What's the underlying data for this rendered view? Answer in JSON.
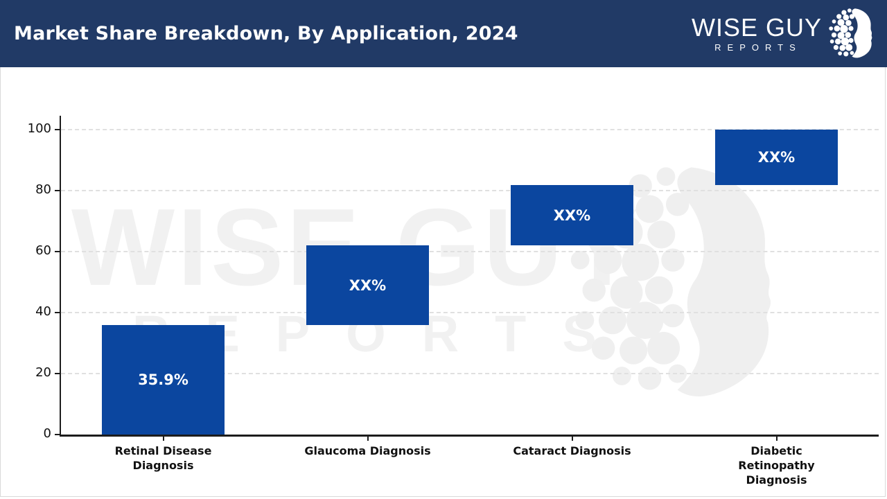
{
  "header": {
    "title": "Market Share Breakdown, By Application, 2024",
    "logo": {
      "line1": "WISE GUY",
      "line2": "REPORTS"
    },
    "bg_color": "#213a66"
  },
  "watermark": {
    "line1": "WISE GUY",
    "line2": "REPORTS"
  },
  "chart_data": {
    "type": "bar",
    "subtype": "waterfall",
    "title": "Market Share Breakdown, By Application, 2024",
    "categories": [
      "Retinal Disease\nDiagnosis",
      "Glaucoma Diagnosis",
      "Cataract Diagnosis",
      "Diabetic\nRetinopathy\nDiagnosis"
    ],
    "segments": [
      {
        "start": 0,
        "end": 35.9,
        "label": "35.9%"
      },
      {
        "start": 35.9,
        "end": 62,
        "label": "XX%"
      },
      {
        "start": 62,
        "end": 81.8,
        "label": "XX%"
      },
      {
        "start": 81.8,
        "end": 100,
        "label": "XX%"
      }
    ],
    "ylim": [
      0,
      100
    ],
    "yticks": [
      0,
      20,
      40,
      60,
      80,
      100
    ],
    "xlabel": "",
    "ylabel": "",
    "grid": "horizontal-dashed",
    "legend": "none",
    "bar_color": "#0b469f",
    "bar_label_color": "#ffffff"
  }
}
